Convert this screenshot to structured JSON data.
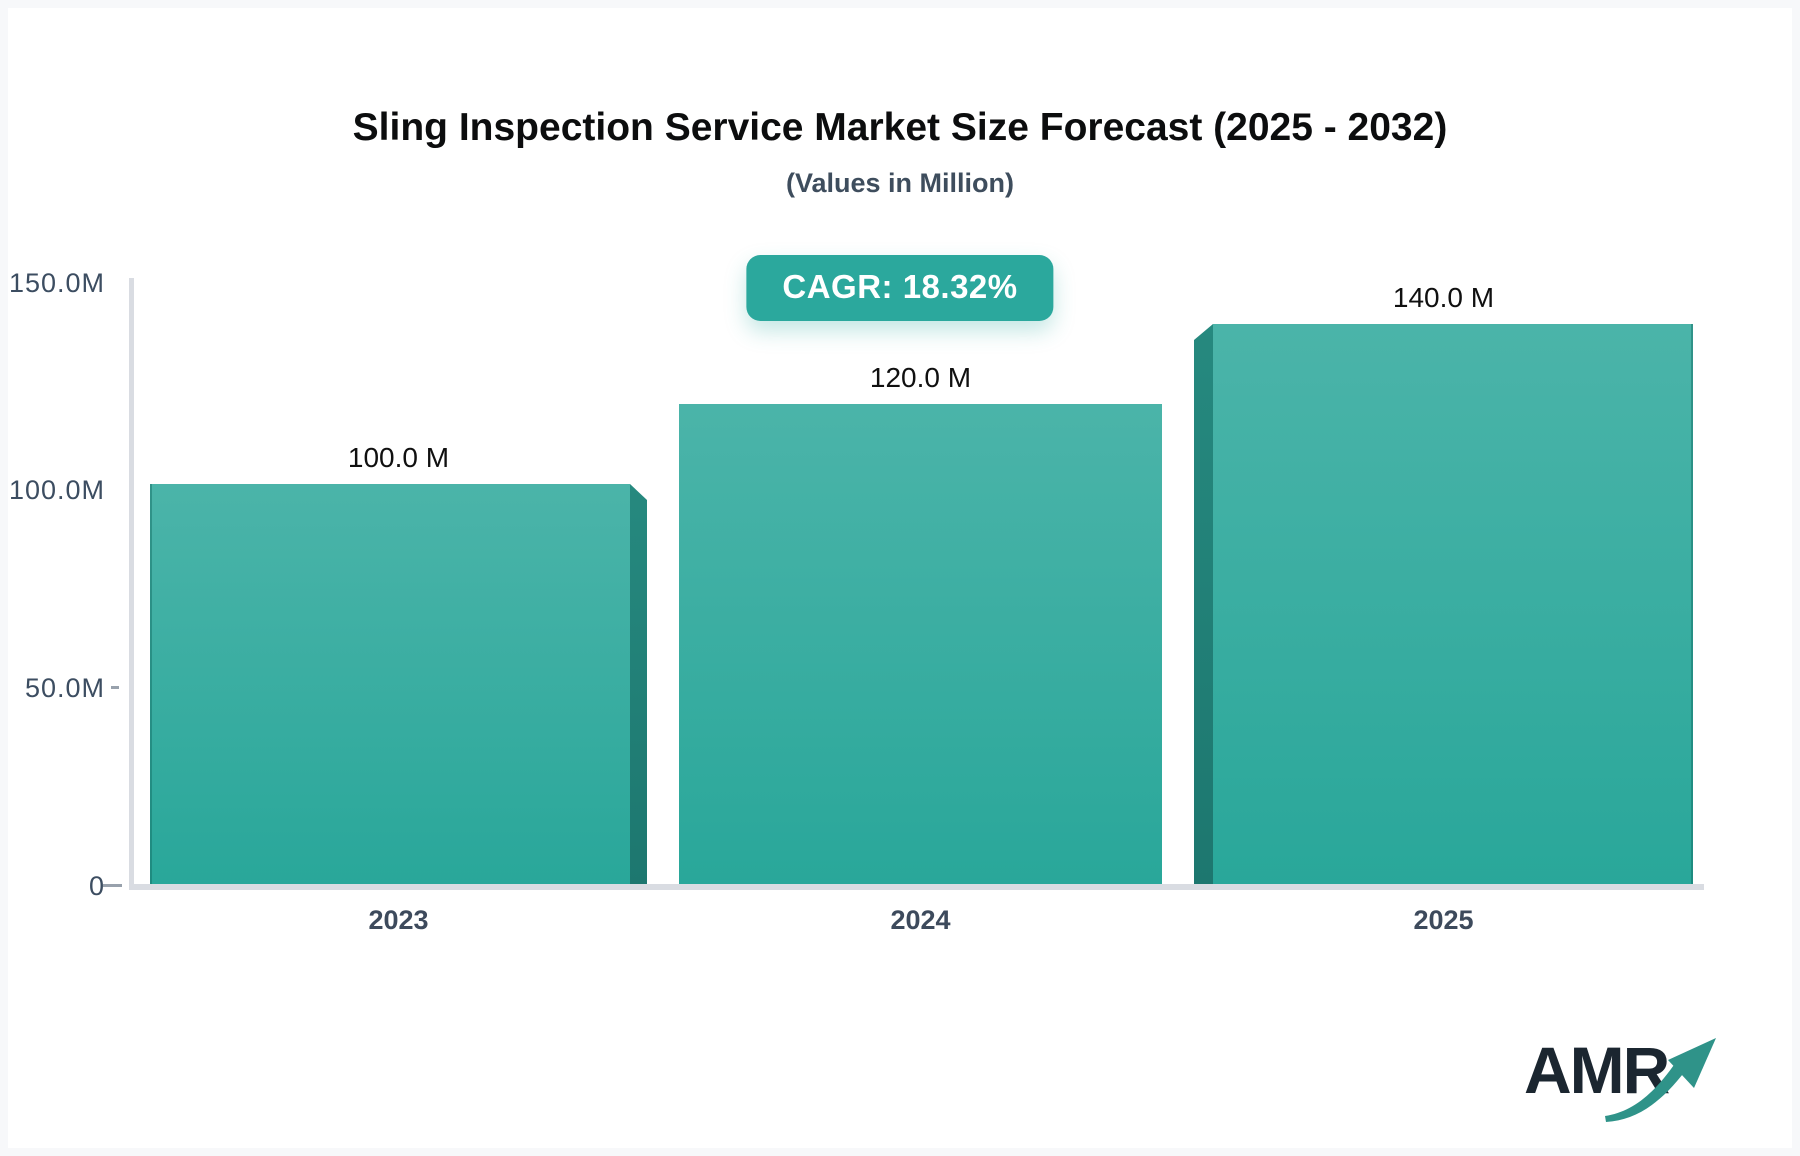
{
  "chart_data": {
    "type": "bar",
    "title": "Sling Inspection Service Market Size Forecast (2025 - 2032)",
    "subtitle": "(Values in Million)",
    "cagr_badge": "CAGR: 18.32%",
    "categories": [
      "2023",
      "2024",
      "2025"
    ],
    "values": [
      100,
      120,
      140
    ],
    "value_labels": [
      "100.0 M",
      "120.0 M",
      "140.0 M"
    ],
    "unit": "Million",
    "ylim": [
      0,
      150
    ],
    "ytick_labels": [
      "150.0M",
      "100.0M",
      "50.0M",
      "0"
    ],
    "grid": "off",
    "legend": "none",
    "colors": {
      "bar_top": "#4bb4a9",
      "bar_bottom": "#29a79a",
      "bar_side": "#1f7e75",
      "badge_bg": "#2ba89d",
      "axis_line": "#d9dce2",
      "tick_text": "#3c4d61",
      "logo_arrow": "#2f9389"
    }
  },
  "branding": {
    "logo_text": "AMR"
  }
}
